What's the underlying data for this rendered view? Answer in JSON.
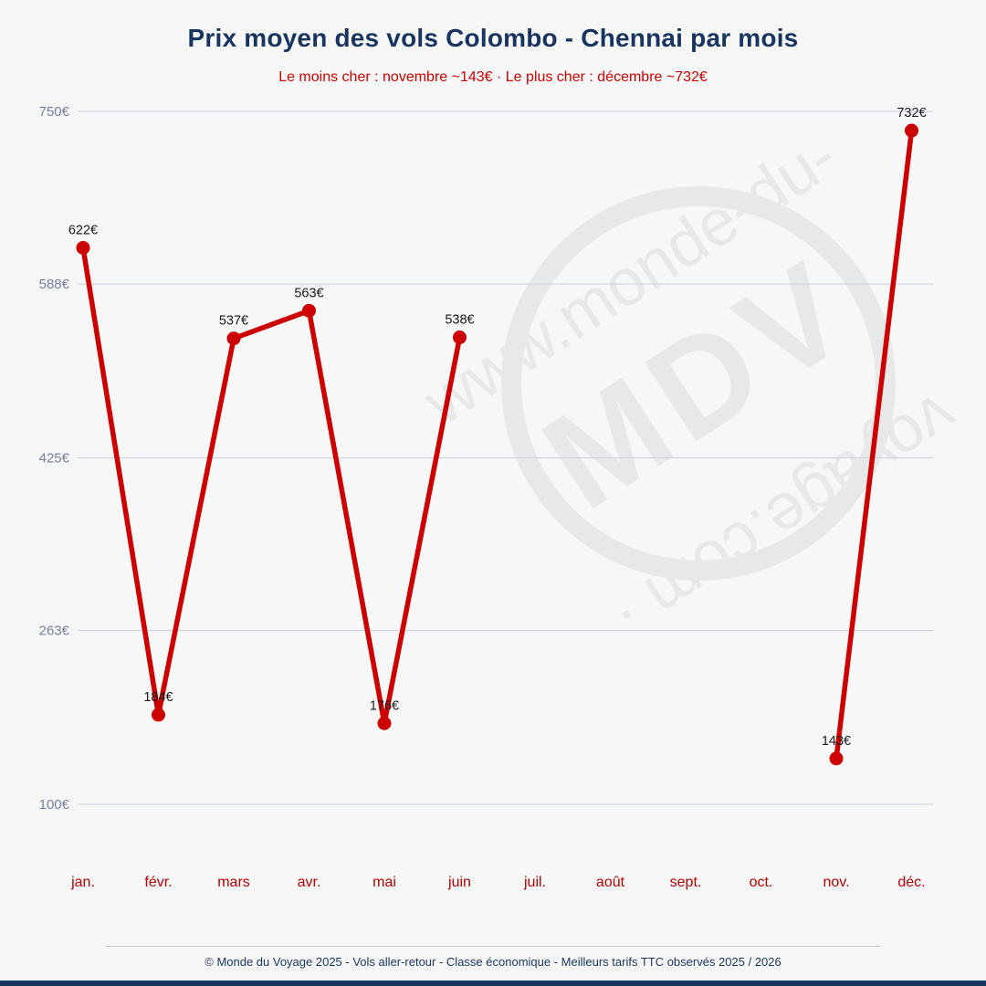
{
  "page": {
    "background": "#f7f7f7"
  },
  "header": {
    "title": "Prix moyen des vols Colombo - Chennai par mois",
    "subtitle": "Le moins cher : novembre ~143€ · Le plus cher : décembre ~732€"
  },
  "watermark": {
    "circle_text": "www.monde-du-voyage.com ·",
    "line1": "www.monde-du-",
    "line2": "voyage.com ·",
    "badge": "MDV"
  },
  "footer": {
    "text": "© Monde du Voyage 2025 - Vols aller-retour - Classe économique - Meilleurs tarifs TTC observés 2025 / 2026"
  },
  "chart_data": {
    "type": "line",
    "title": "Prix moyen des vols Colombo - Chennai par mois",
    "categories": [
      "jan.",
      "févr.",
      "mars",
      "avr.",
      "mai",
      "juin",
      "juil.",
      "août",
      "sept.",
      "oct.",
      "nov.",
      "déc."
    ],
    "values": [
      622,
      184,
      537,
      563,
      176,
      538,
      null,
      null,
      null,
      null,
      143,
      732
    ],
    "value_suffix": "€",
    "ylim": [
      100,
      750
    ],
    "yticks": [
      100,
      263,
      425,
      588,
      750
    ],
    "ytick_labels": [
      "100€",
      "263€",
      "425€",
      "588€",
      "750€"
    ],
    "grid": true,
    "legend": "none",
    "colors": {
      "line": "#cc0000",
      "marker": "#cc0000",
      "grid": "#c8cfdd",
      "ytick": "#73819c",
      "xtick": "#b30000",
      "point_label": "#1a1a1a",
      "title": "#17355f",
      "subtitle": "#cc0000",
      "watermark": "#e8e8e8"
    }
  }
}
